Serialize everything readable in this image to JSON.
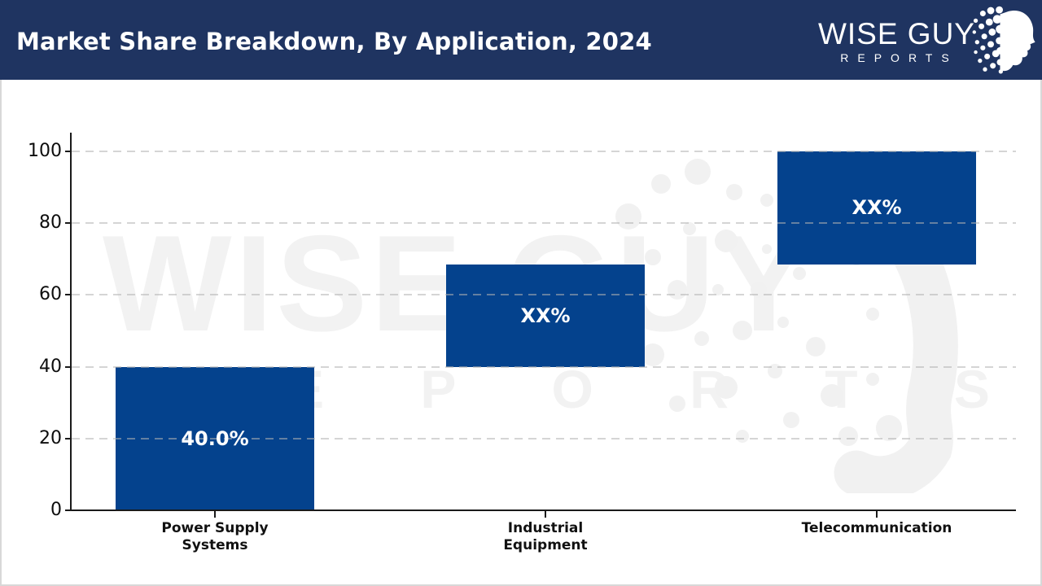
{
  "header": {
    "bg_color": "#1f3461",
    "title": "Market Share Breakdown, By Application, 2024",
    "logo": {
      "line1": "WISE GUY",
      "line2": "REPORTS"
    }
  },
  "watermark": {
    "line1": "WISE GUY",
    "line2": "R E P O R T S"
  },
  "chart_data": {
    "type": "bar",
    "subtype": "waterfall-stacked-segments",
    "title": "Market Share Breakdown, By Application, 2024",
    "categories": [
      "Power Supply\nSystems",
      "Industrial\nEquipment",
      "Telecommunication"
    ],
    "segments": [
      {
        "category": "Power Supply\nSystems",
        "start": 0,
        "end": 40,
        "height": 40,
        "label": "40.0%"
      },
      {
        "category": "Industrial\nEquipment",
        "start": 40,
        "end": 68.5,
        "height": 28.5,
        "label": "XX%"
      },
      {
        "category": "Telecommunication",
        "start": 68.5,
        "end": 100,
        "height": 31.5,
        "label": "XX%"
      }
    ],
    "yticks": [
      0,
      20,
      40,
      60,
      80,
      100
    ],
    "ylim": [
      0,
      105
    ],
    "xlabel": "",
    "ylabel": "",
    "bar_color": "#04428d",
    "grid": true,
    "gridline_style": "dashed",
    "legend": false
  }
}
